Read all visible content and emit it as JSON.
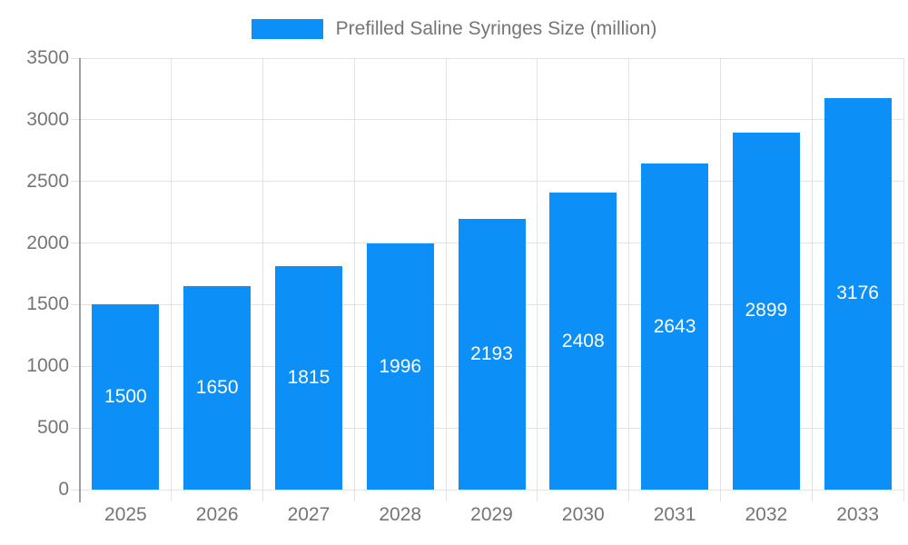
{
  "chart_data": {
    "type": "bar",
    "legend_label": "Prefilled Saline Syringes Size (million)",
    "categories": [
      "2025",
      "2026",
      "2027",
      "2028",
      "2029",
      "2030",
      "2031",
      "2032",
      "2033"
    ],
    "values": [
      1500,
      1650,
      1815,
      1996,
      2193,
      2408,
      2643,
      2899,
      3176
    ],
    "value_labels": [
      "1500",
      "1650",
      "1815",
      "1996",
      "2193",
      "2408",
      "2643",
      "2899",
      "3176"
    ],
    "xlabel": "",
    "ylabel": "",
    "ylim": [
      0,
      3500
    ],
    "yticks": [
      0,
      500,
      1000,
      1500,
      2000,
      2500,
      3000,
      3500
    ],
    "grid": true,
    "legend_position": "top",
    "colors": {
      "bar": "#0d8ff8",
      "grid": "#e3e3e3",
      "axis": "#9e9e9e",
      "tick_label": "#757575",
      "value_label": "#ffffff",
      "background": "#ffffff"
    }
  }
}
